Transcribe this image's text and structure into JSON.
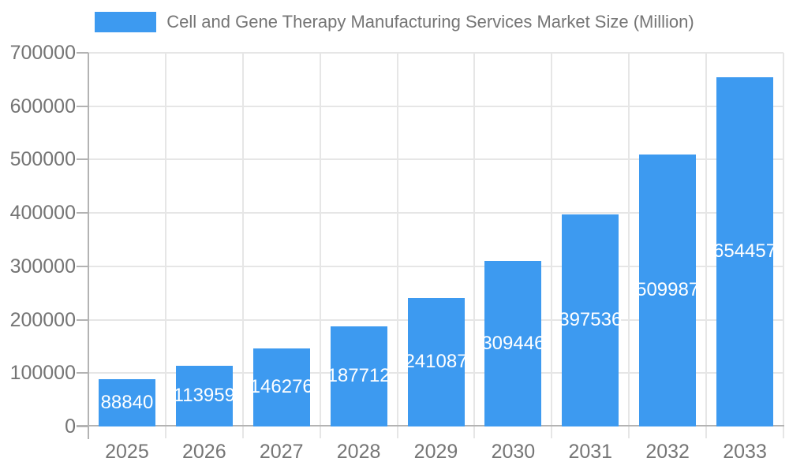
{
  "chart_data": {
    "type": "bar",
    "title": "Cell and Gene Therapy Manufacturing Services Market Size (Million)",
    "series_name": "Cell and Gene Therapy Manufacturing Services Market Size (Million)",
    "categories": [
      "2025",
      "2026",
      "2027",
      "2028",
      "2029",
      "2030",
      "2031",
      "2032",
      "2033"
    ],
    "values": [
      88840,
      113959,
      146276,
      187712,
      241087,
      309446,
      397536,
      509987,
      654457
    ],
    "value_labels": [
      "88840",
      "113959",
      "146276",
      "187712",
      "241087",
      "309446",
      "397536",
      "509987",
      "654457"
    ],
    "xlabel": "",
    "ylabel": "",
    "ylim": [
      0,
      700000
    ],
    "ytick_interval": 100000,
    "ytick_labels": [
      "0",
      "100000",
      "200000",
      "300000",
      "400000",
      "500000",
      "600000",
      "700000"
    ],
    "grid": true,
    "legend_position": "top",
    "bar_color": "#3D9AF0",
    "value_label_color": "#ffffff",
    "gridline_color": "#e6e6e6",
    "axis_color": "#b3b3b3",
    "label_color": "#757575"
  }
}
